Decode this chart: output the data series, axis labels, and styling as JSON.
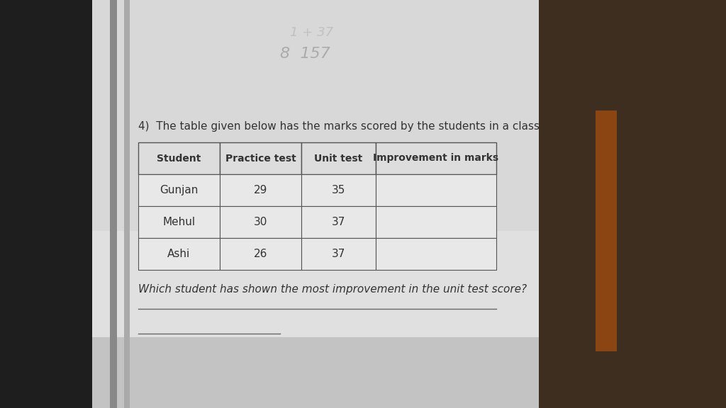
{
  "question_number": "4)",
  "question_text": "The table given below has the marks scored by the students in a class.",
  "headers": [
    "Student",
    "Practice test",
    "Unit test",
    "Improvement in marks"
  ],
  "rows": [
    [
      "Gunjan",
      "29",
      "35",
      ""
    ],
    [
      "Mehul",
      "30",
      "37",
      ""
    ],
    [
      "Ashi",
      "26",
      "37",
      ""
    ]
  ],
  "follow_up": "Which student has shown the most improvement in the unit test score?",
  "bg_color_left": "#2a2a2a",
  "bg_color_right": "#5a4535",
  "paper_color": "#e8e8e8",
  "paper_color_top": "#d0d0d0",
  "table_header_bg": "#dddddd",
  "table_row_bg": "#e8e8e8",
  "border_color": "#555555",
  "text_color": "#333333",
  "left_strip_color": "#1a1a1a",
  "shadow_color": "#808080"
}
